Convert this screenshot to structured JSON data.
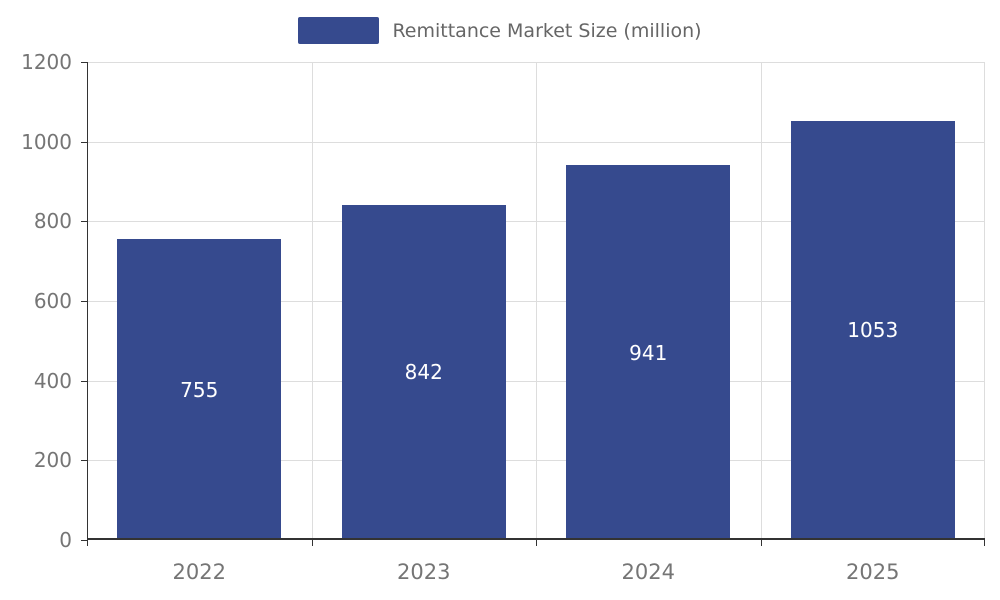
{
  "chart_data": {
    "type": "bar",
    "title": "Remittance Market Size (million)",
    "categories": [
      "2022",
      "2023",
      "2024",
      "2025"
    ],
    "values": [
      755,
      842,
      941,
      1053
    ],
    "series": [
      {
        "name": "Remittance Market Size (million)",
        "values": [
          755,
          842,
          941,
          1053
        ]
      }
    ],
    "xlabel": "",
    "ylabel": "",
    "ylim": [
      0,
      1200
    ],
    "ytick_step": 200,
    "yticks": [
      0,
      200,
      400,
      600,
      800,
      1000,
      1200
    ],
    "grid": true,
    "legend_position": "top-center",
    "value_labels_visible": true,
    "colors": {
      "bar": "#364A8E",
      "bar_value_label": "#ffffff",
      "axis_line": "#333333",
      "grid_line": "#dddddd",
      "tick_label": "#757575",
      "legend_text": "#666666",
      "background": "#ffffff"
    }
  }
}
